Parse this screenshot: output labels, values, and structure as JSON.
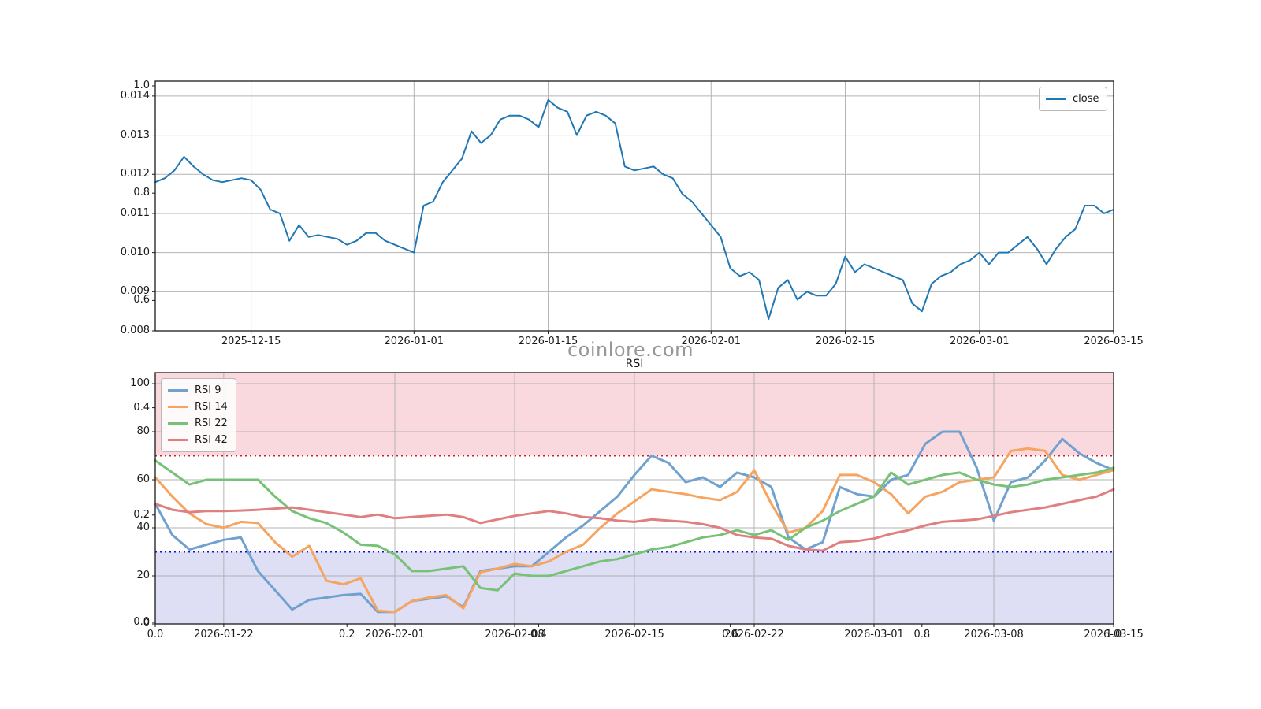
{
  "watermark": "coinlore.com",
  "overlay_axis": {
    "yticks": [
      "1.0",
      "0.8",
      "0.6",
      "0.4",
      "0.2",
      "0.0"
    ],
    "xticks": [
      "0.0",
      "0.2",
      "0.4",
      "0.6",
      "0.8",
      "1.0"
    ]
  },
  "chart_data": [
    {
      "type": "line",
      "title": "",
      "x_start_date": "2025-12-05",
      "x_end_date": "2026-03-15",
      "x_total_days": 100,
      "grid": true,
      "legend_position": "upper right",
      "ylim": [
        0.008,
        0.01438
      ],
      "yticks": [
        {
          "v": 0.008,
          "label": "0.008"
        },
        {
          "v": 0.009,
          "label": "0.009"
        },
        {
          "v": 0.01,
          "label": "0.010"
        },
        {
          "v": 0.011,
          "label": "0.011"
        },
        {
          "v": 0.012,
          "label": "0.012"
        },
        {
          "v": 0.013,
          "label": "0.013"
        },
        {
          "v": 0.014,
          "label": "0.014"
        }
      ],
      "xticks": [
        {
          "day": 10,
          "label": "2025-12-15"
        },
        {
          "day": 27,
          "label": "2026-01-01"
        },
        {
          "day": 41,
          "label": "2026-01-15"
        },
        {
          "day": 58,
          "label": "2026-02-01"
        },
        {
          "day": 72,
          "label": "2026-02-15"
        },
        {
          "day": 86,
          "label": "2026-03-01"
        },
        {
          "day": 100,
          "label": "2026-03-15"
        }
      ],
      "series": [
        {
          "name": "close",
          "color": "#1f77b4",
          "width": 2,
          "values": [
            0.0118,
            0.0119,
            0.0121,
            0.01245,
            0.0122,
            0.012,
            0.01185,
            0.0118,
            0.01185,
            0.0119,
            0.01185,
            0.0116,
            0.0111,
            0.011,
            0.0103,
            0.0107,
            0.0104,
            0.01045,
            0.0104,
            0.01035,
            0.0102,
            0.0103,
            0.0105,
            0.0105,
            0.0103,
            0.0102,
            0.0101,
            0.01,
            0.0112,
            0.0113,
            0.0118,
            0.0121,
            0.0124,
            0.0131,
            0.0128,
            0.013,
            0.0134,
            0.0135,
            0.0135,
            0.0134,
            0.0132,
            0.0139,
            0.0137,
            0.0136,
            0.013,
            0.0135,
            0.0136,
            0.0135,
            0.0133,
            0.0122,
            0.0121,
            0.01215,
            0.0122,
            0.012,
            0.0119,
            0.0115,
            0.0113,
            0.011,
            0.0107,
            0.0104,
            0.0096,
            0.0094,
            0.0095,
            0.0093,
            0.0083,
            0.0091,
            0.0093,
            0.0088,
            0.009,
            0.0089,
            0.0089,
            0.0092,
            0.0099,
            0.0095,
            0.0097,
            0.0096,
            0.0095,
            0.0094,
            0.0093,
            0.0087,
            0.0085,
            0.0092,
            0.0094,
            0.0095,
            0.0097,
            0.0098,
            0.01,
            0.0097,
            0.01,
            0.01,
            0.0102,
            0.0104,
            0.0101,
            0.0097,
            0.0101,
            0.0104,
            0.0106,
            0.0112,
            0.0112,
            0.011,
            0.0111
          ]
        }
      ]
    },
    {
      "type": "line",
      "title": "RSI",
      "x_start_date": "2026-01-18",
      "x_end_date": "2026-03-15",
      "x_total_days": 56,
      "grid": true,
      "legend_position": "upper left",
      "ylim": [
        0,
        104.6
      ],
      "yticks": [
        {
          "v": 0,
          "label": "0"
        },
        {
          "v": 20,
          "label": "20"
        },
        {
          "v": 40,
          "label": "40"
        },
        {
          "v": 60,
          "label": "60"
        },
        {
          "v": 80,
          "label": "80"
        },
        {
          "v": 100,
          "label": "100"
        }
      ],
      "xticks": [
        {
          "day": 4,
          "label": "2026-01-22"
        },
        {
          "day": 14,
          "label": "2026-02-01"
        },
        {
          "day": 21,
          "label": "2026-02-08"
        },
        {
          "day": 28,
          "label": "2026-02-15"
        },
        {
          "day": 35,
          "label": "2026-02-22"
        },
        {
          "day": 42,
          "label": "2026-03-01"
        },
        {
          "day": 49,
          "label": "2026-03-08"
        },
        {
          "day": 56,
          "label": "2026-03-15"
        }
      ],
      "hlines": [
        {
          "y": 70,
          "color": "#d01c2f",
          "style": "dotted"
        },
        {
          "y": 30,
          "color": "#1414c8",
          "style": "dotted"
        }
      ],
      "bands": [
        {
          "from": 70,
          "to": 104.6,
          "color": "#fad9de",
          "meaning": "overbought"
        },
        {
          "from": 0,
          "to": 30,
          "color": "#dedef5",
          "meaning": "oversold"
        }
      ],
      "series": [
        {
          "name": "RSI 9",
          "color": "#70a1cf",
          "width": 3,
          "values": [
            50,
            37,
            31,
            33,
            35,
            36,
            22,
            14,
            6,
            10,
            11,
            12,
            12.5,
            5,
            5,
            9.5,
            10.5,
            11.5,
            7,
            22,
            23,
            24,
            24,
            30,
            36,
            41,
            47,
            53,
            62,
            70,
            67,
            59,
            61,
            57,
            63,
            61,
            57,
            36,
            31,
            34,
            57,
            54,
            53,
            60,
            62,
            75,
            80,
            80,
            65,
            43,
            59,
            61,
            68,
            77,
            71,
            67,
            64
          ]
        },
        {
          "name": "RSI 14",
          "color": "#f6a45f",
          "width": 3,
          "values": [
            61,
            53,
            46,
            41.5,
            40,
            42.5,
            42,
            34,
            28,
            32.5,
            18,
            16.5,
            19,
            5.5,
            5,
            9.5,
            11,
            12,
            6.5,
            21.5,
            23,
            25,
            24,
            26,
            30,
            33,
            40,
            46,
            51,
            56,
            55,
            54,
            52.5,
            51.5,
            55,
            64,
            50,
            38,
            40,
            47,
            62,
            62,
            59,
            54,
            46,
            53,
            55,
            59,
            60,
            61,
            72,
            73,
            72,
            62,
            60,
            62,
            64
          ]
        },
        {
          "name": "RSI 22",
          "color": "#77c277",
          "width": 3,
          "values": [
            68,
            63,
            58,
            60,
            60,
            60,
            60,
            53,
            47,
            44,
            42,
            38,
            33,
            32.5,
            29,
            22,
            22,
            23,
            24,
            15,
            14,
            21,
            20,
            20,
            22,
            24,
            26,
            27,
            29,
            31,
            32,
            34,
            36,
            37,
            39,
            37,
            39,
            35,
            40,
            43,
            47,
            50,
            53,
            63,
            58,
            60,
            62,
            63,
            60,
            58,
            57,
            58,
            60,
            61,
            62,
            63,
            65
          ]
        },
        {
          "name": "RSI 42",
          "color": "#e07f80",
          "width": 3,
          "values": [
            50,
            47.5,
            46.5,
            47,
            47,
            47.2,
            47.5,
            48,
            48.5,
            47.5,
            46.5,
            45.5,
            44.5,
            45.5,
            44,
            44.5,
            45,
            45.5,
            44.5,
            42,
            43.5,
            45,
            46,
            47,
            46,
            44.5,
            44,
            43,
            42.5,
            43.5,
            43,
            42.5,
            41.5,
            40,
            37,
            36,
            35.5,
            32.5,
            31,
            30.5,
            34,
            34.5,
            35.5,
            37.5,
            39,
            41,
            42.5,
            43,
            43.5,
            45,
            46.5,
            47.5,
            48.5,
            50,
            51.5,
            53,
            56
          ]
        }
      ]
    }
  ]
}
